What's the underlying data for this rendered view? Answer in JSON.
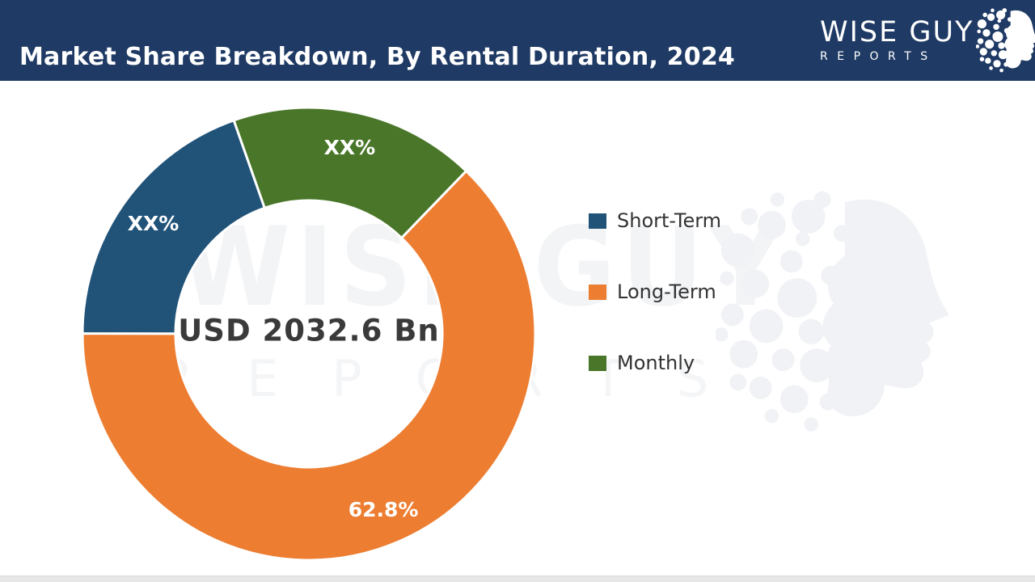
{
  "header": {
    "title": "Market Share Breakdown, By Rental Duration, 2024",
    "background_color": "#1F3A64",
    "logo": {
      "line1": "WISE GUY",
      "line2": "REPORTS",
      "icon": "dotted-face-profile-icon"
    }
  },
  "watermark": {
    "line1": "WISE GUY",
    "line2": "REPORTS",
    "face_icon": "dotted-face-profile-icon",
    "color": "#F3F4F6"
  },
  "chart_data": {
    "type": "pie",
    "subtype": "donut",
    "title": "Market Share Breakdown, By Rental Duration, 2024",
    "center_label": "USD 2032.6 Bn",
    "start_angle_deg": 44,
    "legend_position": "right",
    "segments": [
      {
        "name": "Long-Term",
        "display_label": "62.8%",
        "value_pct": 62.8,
        "estimated": false,
        "color": "#ED7D31"
      },
      {
        "name": "Short-Term",
        "display_label": "XX%",
        "value_pct": 19.6,
        "estimated": true,
        "color": "#215379"
      },
      {
        "name": "Monthly",
        "display_label": "XX%",
        "value_pct": 17.6,
        "estimated": true,
        "color": "#497628"
      }
    ]
  },
  "legend": {
    "items": [
      {
        "label": "Short-Term",
        "color": "#215379"
      },
      {
        "label": "Long-Term",
        "color": "#ED7D31"
      },
      {
        "label": "Monthly",
        "color": "#497628"
      }
    ]
  }
}
